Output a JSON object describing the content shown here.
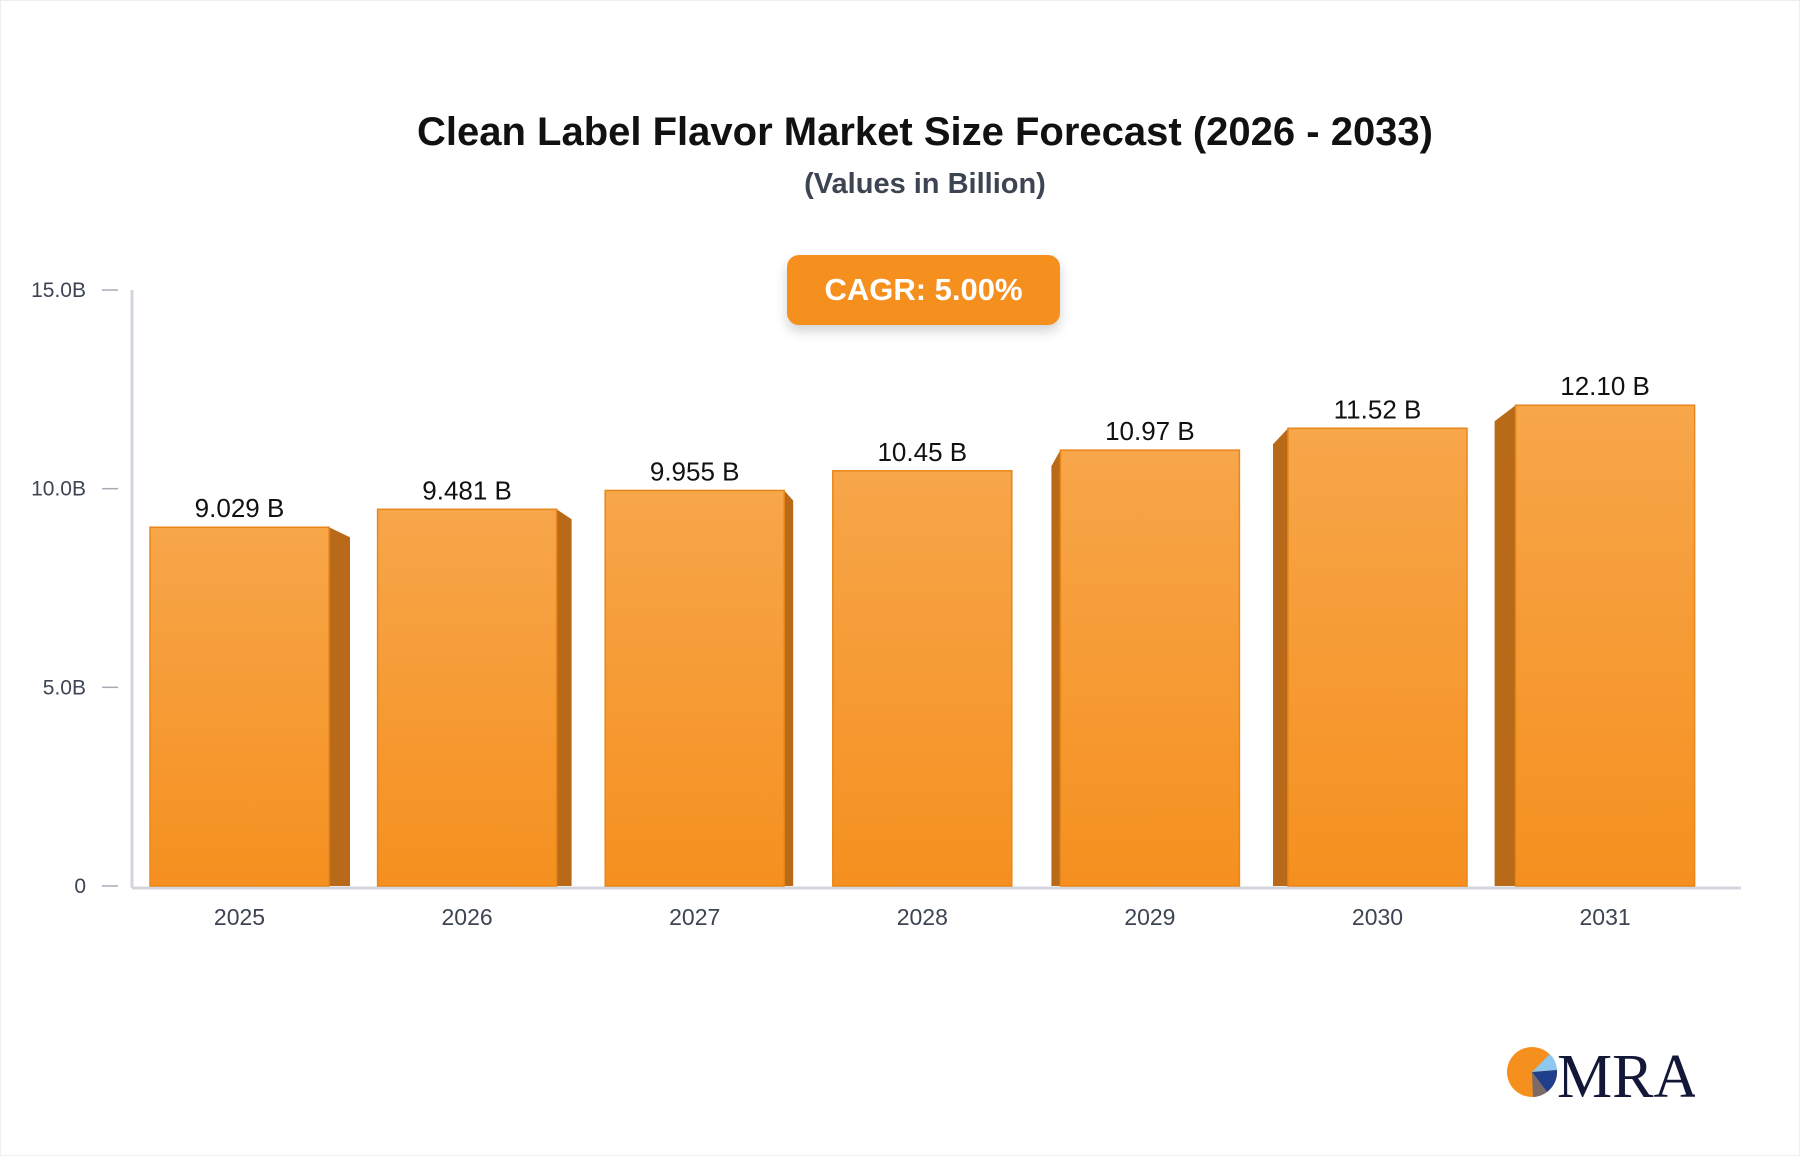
{
  "chart_data": {
    "type": "bar",
    "title": "Clean Label Flavor Market Size Forecast (2026 - 2033)",
    "subtitle": "(Values in Billion)",
    "annotation": "CAGR: 5.00%",
    "categories": [
      "2025",
      "2026",
      "2027",
      "2028",
      "2029",
      "2030",
      "2031"
    ],
    "values": [
      9.029,
      9.481,
      9.955,
      10.45,
      10.97,
      11.52,
      12.1
    ],
    "data_labels": [
      "9.029 B",
      "9.481 B",
      "9.955 B",
      "10.45 B",
      "10.97 B",
      "11.52 B",
      "12.10 B"
    ],
    "ylim": [
      0,
      15
    ],
    "yticks": [
      0,
      5,
      10,
      15
    ],
    "ytick_labels": [
      "0",
      "5.0B",
      "10.0B",
      "15.0B"
    ],
    "xlabel": "",
    "ylabel": "",
    "grid": false,
    "colors": {
      "bar": "#f5901f",
      "bar_top": "#f7a64a",
      "bar_side": "#b86a18",
      "axis": "#d3d5dc"
    }
  },
  "logo": {
    "text": "MRA"
  }
}
